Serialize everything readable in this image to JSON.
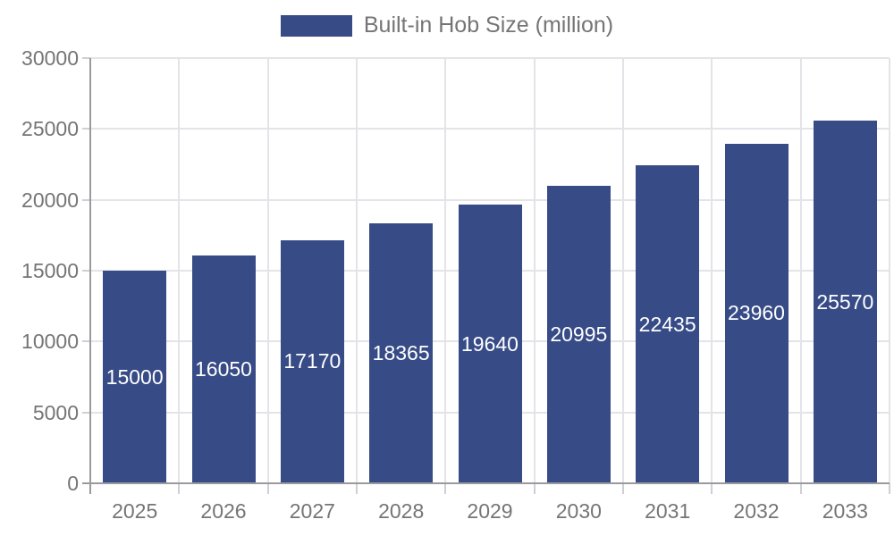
{
  "legend": {
    "label": "Built-in Hob Size (million)"
  },
  "colors": {
    "bar": "#374B87",
    "axis_label_text": "#757575",
    "bar_label_text": "#ffffff",
    "gridline": "#e4e4e8",
    "axis_line": "#9a9a9e",
    "tick": "#cfcfd4",
    "background": "#ffffff"
  },
  "chart_data": {
    "type": "bar",
    "title": "",
    "legend_position": "top",
    "categories": [
      "2025",
      "2026",
      "2027",
      "2028",
      "2029",
      "2030",
      "2031",
      "2032",
      "2033"
    ],
    "series": [
      {
        "name": "Built-in Hob Size (million)",
        "values": [
          15000,
          16050,
          17170,
          18365,
          19640,
          20995,
          22435,
          23960,
          25570
        ]
      }
    ],
    "xlabel": "",
    "ylabel": "",
    "ylim": [
      0,
      30000
    ],
    "yticks": [
      0,
      5000,
      10000,
      15000,
      20000,
      25000,
      30000
    ],
    "grid": true,
    "bar_value_labels": "inside-center"
  }
}
